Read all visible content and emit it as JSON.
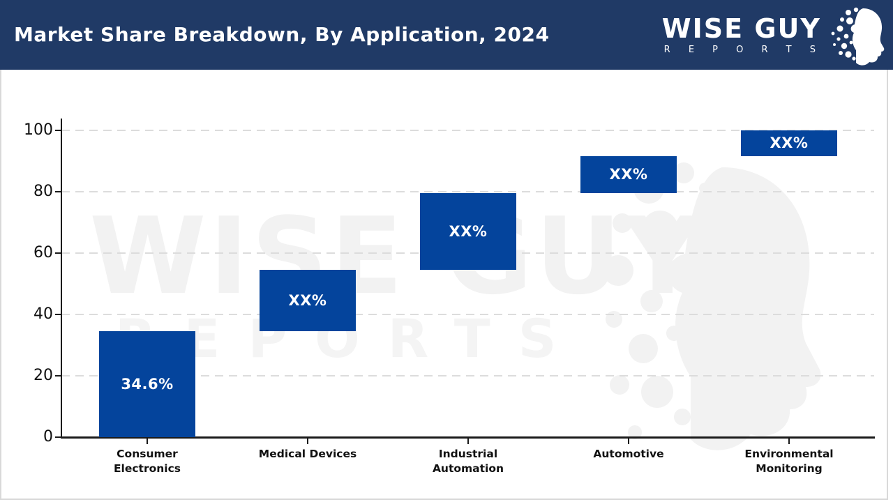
{
  "header": {
    "title": "Market Share Breakdown, By Application, 2024",
    "brand_line1": "WISE GUY",
    "brand_line2": "R E P O R T S"
  },
  "watermark": {
    "line1": "WISE GUY",
    "line2": "REPORTS"
  },
  "colors": {
    "header_bg": "#203A66",
    "bar": "#04449C",
    "bar_label": "#FFFFFF",
    "gridline": "#DCDCDC",
    "axis": "#1A1A1A",
    "frame_border": "#D9D9D9",
    "watermark": "#F2F2F2"
  },
  "chart_data": {
    "type": "bar",
    "subtype": "waterfall-floating-bars",
    "title": "Market Share Breakdown, By Application, 2024",
    "categories": [
      "Consumer Electronics",
      "Medical Devices",
      "Industrial Automation",
      "Automotive",
      "Environmental Monitoring"
    ],
    "category_lines": [
      [
        "Consumer",
        "Electronics"
      ],
      [
        "Medical Devices"
      ],
      [
        "Industrial",
        "Automation"
      ],
      [
        "Automotive"
      ],
      [
        "Environmental",
        "Monitoring"
      ]
    ],
    "segments": [
      {
        "category": "Consumer Electronics",
        "start": 0,
        "end": 34.6,
        "label": "34.6%"
      },
      {
        "category": "Medical Devices",
        "start": 34.6,
        "end": 54.6,
        "label": "XX%"
      },
      {
        "category": "Industrial Automation",
        "start": 54.6,
        "end": 79.6,
        "label": "XX%"
      },
      {
        "category": "Automotive",
        "start": 79.6,
        "end": 91.6,
        "label": "XX%"
      },
      {
        "category": "Environmental Monitoring",
        "start": 91.6,
        "end": 100,
        "label": "XX%"
      }
    ],
    "yticks": [
      0,
      20,
      40,
      60,
      80,
      100
    ],
    "ylim": [
      0,
      104
    ],
    "xlabel": "",
    "ylabel": "",
    "grid": "horizontal-dashed",
    "legend": "none"
  }
}
